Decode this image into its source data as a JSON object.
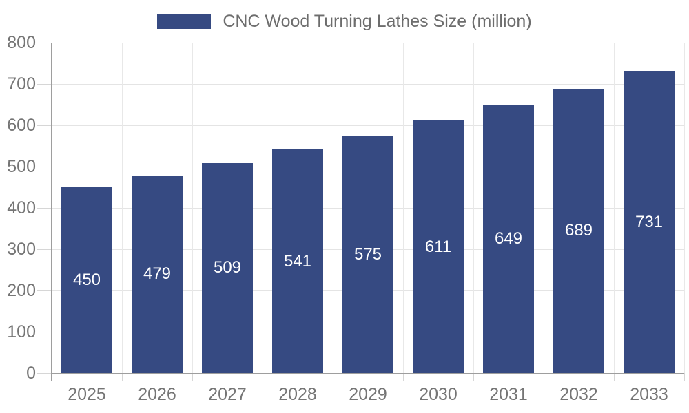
{
  "legend": {
    "label": "CNC Wood Turning Lathes Size (million)"
  },
  "chart_data": {
    "type": "bar",
    "title": "CNC Wood Turning Lathes Size (million)",
    "categories": [
      "2025",
      "2026",
      "2027",
      "2028",
      "2029",
      "2030",
      "2031",
      "2032",
      "2033"
    ],
    "values": [
      450,
      479,
      509,
      541,
      575,
      611,
      649,
      689,
      731
    ],
    "xlabel": "",
    "ylabel": "",
    "ylim": [
      0,
      800
    ],
    "ytick_step": 100,
    "yticks": [
      0,
      100,
      200,
      300,
      400,
      500,
      600,
      700,
      800
    ],
    "grid": true,
    "legend_position": "top-center",
    "colors": {
      "bar": "#364A82",
      "value_label": "#ffffff",
      "axis_text": "#757575",
      "legend_text": "#6d6d6d",
      "gridline_h": "#e4e4e4",
      "gridline_v": "#e8e8e8",
      "axis_line": "#9e9e9e",
      "tick": "#d6d6d6",
      "background": "#ffffff"
    }
  }
}
